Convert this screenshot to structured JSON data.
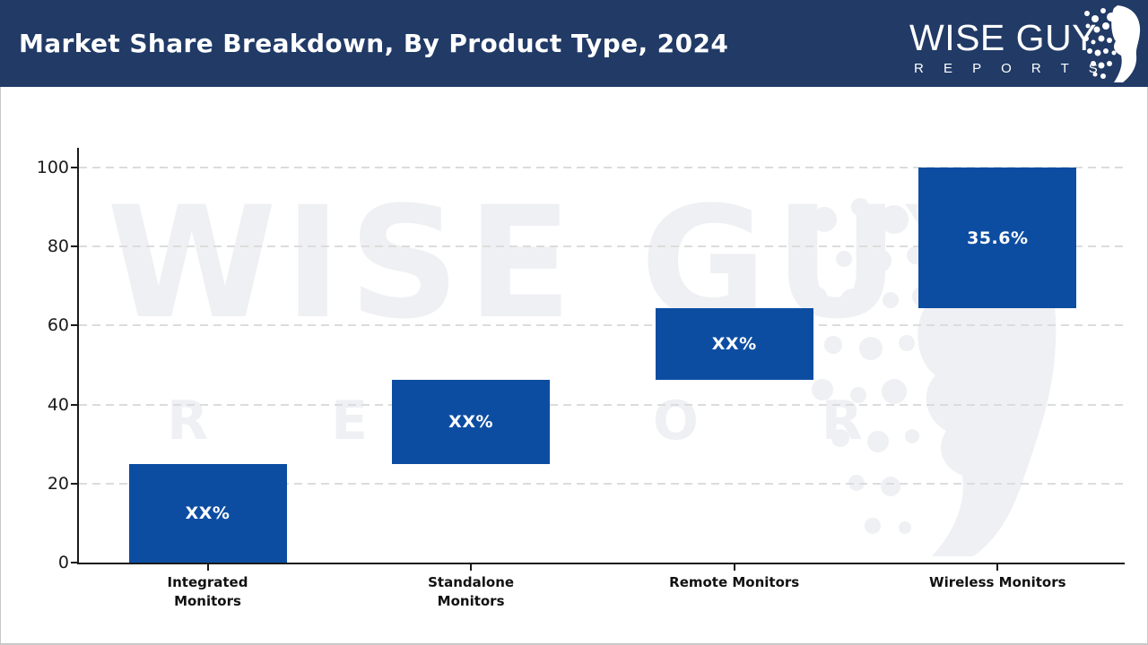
{
  "header": {
    "title": "Market Share Breakdown, By Product Type, 2024",
    "background": "#213a66",
    "logo": {
      "name": "WISE GUY",
      "subtitle": "R E P O R T S"
    }
  },
  "watermark": {
    "line1": "WISE GUY",
    "line2": "R E P O R T S"
  },
  "chart_data": {
    "type": "bar",
    "subtype": "waterfall",
    "title": "Market Share Breakdown, By Product Type, 2024",
    "xlabel": "",
    "ylabel": "",
    "ylim": [
      0,
      100
    ],
    "yticks": [
      0,
      20,
      40,
      60,
      80,
      100
    ],
    "grid": "horizontal-dashed",
    "legend": "none",
    "bar_color": "#0c4da2",
    "bar_label_color": "#ffffff",
    "categories": [
      "Integrated\nMonitors",
      "Standalone\nMonitors",
      "Remote Monitors",
      "Wireless Monitors"
    ],
    "series": [
      {
        "name": "Market Share (%)",
        "segments": [
          {
            "category": "Integrated Monitors",
            "start": 0,
            "end": 24.9,
            "value": 24.9,
            "label": "XX%"
          },
          {
            "category": "Standalone Monitors",
            "start": 24.9,
            "end": 46.3,
            "value": 21.4,
            "label": "XX%"
          },
          {
            "category": "Remote Monitors",
            "start": 46.3,
            "end": 64.4,
            "value": 18.1,
            "label": "XX%"
          },
          {
            "category": "Wireless Monitors",
            "start": 64.4,
            "end": 100,
            "value": 35.6,
            "label": "35.6%"
          }
        ]
      }
    ]
  }
}
